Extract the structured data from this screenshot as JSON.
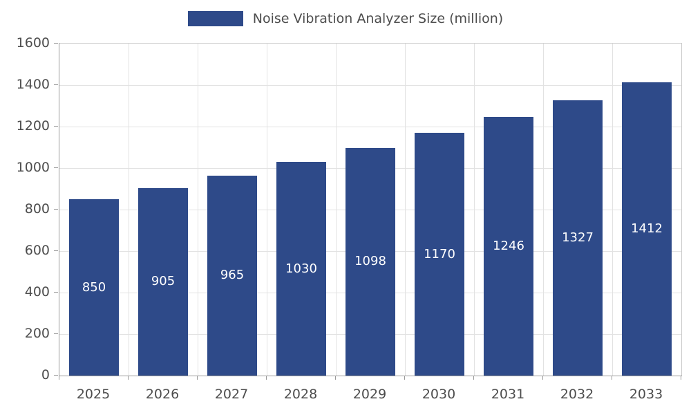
{
  "chart_data": {
    "type": "bar",
    "title": "Noise Vibration Analyzer Size (million)",
    "categories": [
      "2025",
      "2026",
      "2027",
      "2028",
      "2029",
      "2030",
      "2031",
      "2032",
      "2033"
    ],
    "values": [
      850,
      905,
      965,
      1030,
      1098,
      1170,
      1246,
      1327,
      1412
    ],
    "xlabel": "",
    "ylabel": "",
    "ylim": [
      0,
      1600
    ],
    "yticks": [
      0,
      200,
      400,
      600,
      800,
      1000,
      1200,
      1400,
      1600
    ],
    "grid": true,
    "legend_position": "top-center",
    "bar_color": "#2e4a89",
    "bar_label_color": "#ffffff",
    "bar_labels_inside": true
  }
}
